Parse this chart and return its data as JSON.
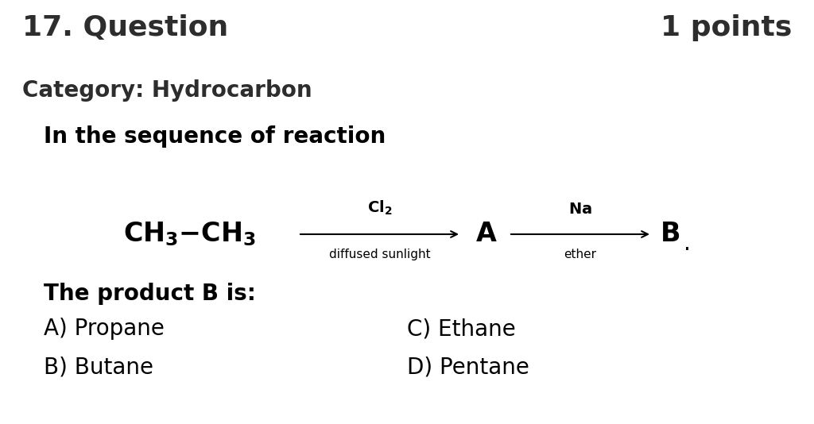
{
  "background_color": "#ffffff",
  "title_left": "17. Question",
  "title_right": "1 points",
  "category_label": "Category: Hydrocarbon",
  "sequence_label": "In the sequence of reaction",
  "arrow1_above": "Cl$_2$",
  "arrow1_below": "diffused sunlight",
  "arrow2_above": "Na",
  "arrow2_below": "ether",
  "product_question": "The product B is:",
  "option_A": "A) Propane",
  "option_B": "B) Butane",
  "option_C": "C) Ethane",
  "option_D": "D) Pentane",
  "title_color": "#2d2d2d",
  "text_color": "#1a1a1a",
  "reaction_color": "#000000"
}
